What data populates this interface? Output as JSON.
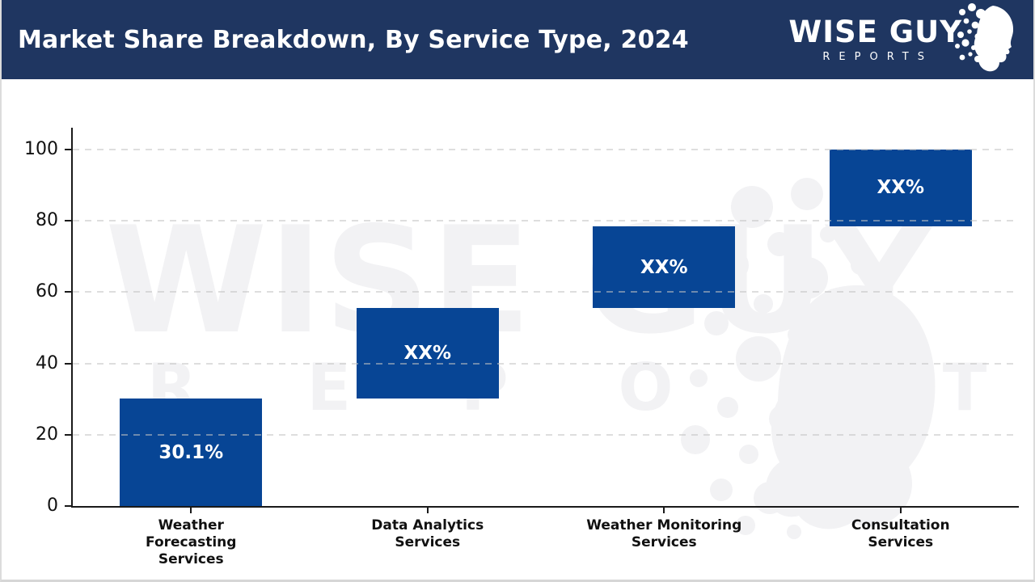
{
  "header": {
    "title": "Market Share Breakdown, By Service Type, 2024",
    "logo": {
      "name": "WISE GUY",
      "sub": "REPORTS"
    }
  },
  "watermark": {
    "name": "WISE GUY",
    "sub": "R E P O R T S"
  },
  "icons": {
    "logo_face": "dotted-head-profile",
    "watermark_face": "dotted-head-profile"
  },
  "colors": {
    "header_bg": "#1f3661",
    "bar": "#074595",
    "bar_label": "#ffffff",
    "grid": "#e3e3e3",
    "axis": "#1a1a1a",
    "watermark": "#f2f2f4"
  },
  "chart_data": {
    "type": "bar",
    "subtype": "waterfall",
    "title": "Market Share Breakdown, By Service Type, 2024",
    "categories": [
      "Weather Forecasting Services",
      "Data Analytics Services",
      "Weather Monitoring Services",
      "Consultation Services"
    ],
    "category_lines": [
      [
        "Weather",
        "Forecasting",
        "Services"
      ],
      [
        "Data Analytics",
        "Services"
      ],
      [
        "Weather Monitoring",
        "Services"
      ],
      [
        "Consultation",
        "Services"
      ]
    ],
    "segments": [
      {
        "category": "Weather Forecasting Services",
        "label": "30.1%",
        "start": 0,
        "end": 30.1
      },
      {
        "category": "Data Analytics Services",
        "label": "XX%",
        "start": 30.1,
        "end": 55.5
      },
      {
        "category": "Weather Monitoring Services",
        "label": "XX%",
        "start": 55.5,
        "end": 78.5
      },
      {
        "category": "Consultation Services",
        "label": "XX%",
        "start": 78.5,
        "end": 100
      }
    ],
    "xlabel": "",
    "ylabel": "",
    "yticks": [
      0,
      20,
      40,
      60,
      80,
      100
    ],
    "ylim": [
      0,
      106
    ],
    "grid": "horizontal-dashed",
    "legend": "none",
    "bar_color": "#074595",
    "bar_label_color": "#ffffff"
  }
}
